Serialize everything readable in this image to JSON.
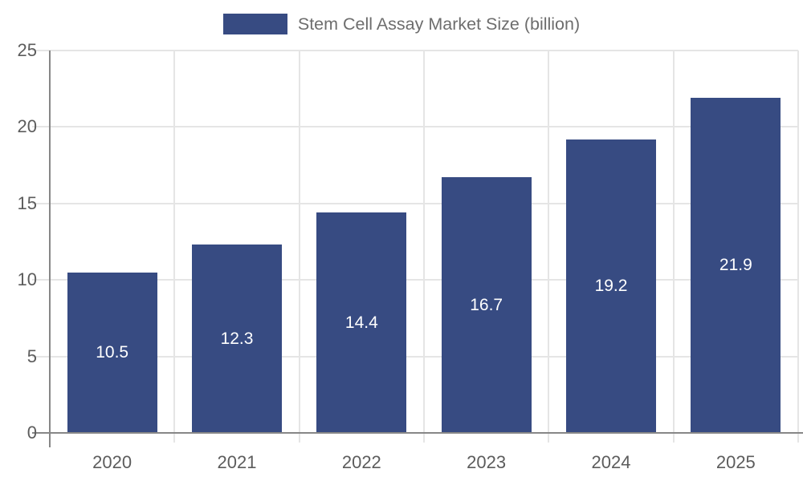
{
  "legend": {
    "label": "Stem Cell Assay Market Size (billion)"
  },
  "colors": {
    "bar": "#374B82",
    "grid": "#e5e5e5",
    "axis": "#878787",
    "tick_label": "#5c5c5c",
    "legend_label": "#6d6d6d",
    "value_label": "#ffffff"
  },
  "chart_data": {
    "type": "bar",
    "title": "Stem Cell Assay Market Size (billion)",
    "categories": [
      "2020",
      "2021",
      "2022",
      "2023",
      "2024",
      "2025"
    ],
    "values": [
      10.5,
      12.3,
      14.4,
      16.7,
      19.2,
      21.9
    ],
    "series_name": "Stem Cell Assay Market Size (billion)",
    "xlabel": "",
    "ylabel": "",
    "ylim": [
      0,
      25
    ],
    "yticks": [
      0,
      5,
      10,
      15,
      20,
      25
    ],
    "grid": true,
    "legend_position": "top-center",
    "value_label_position": "inside-center"
  }
}
